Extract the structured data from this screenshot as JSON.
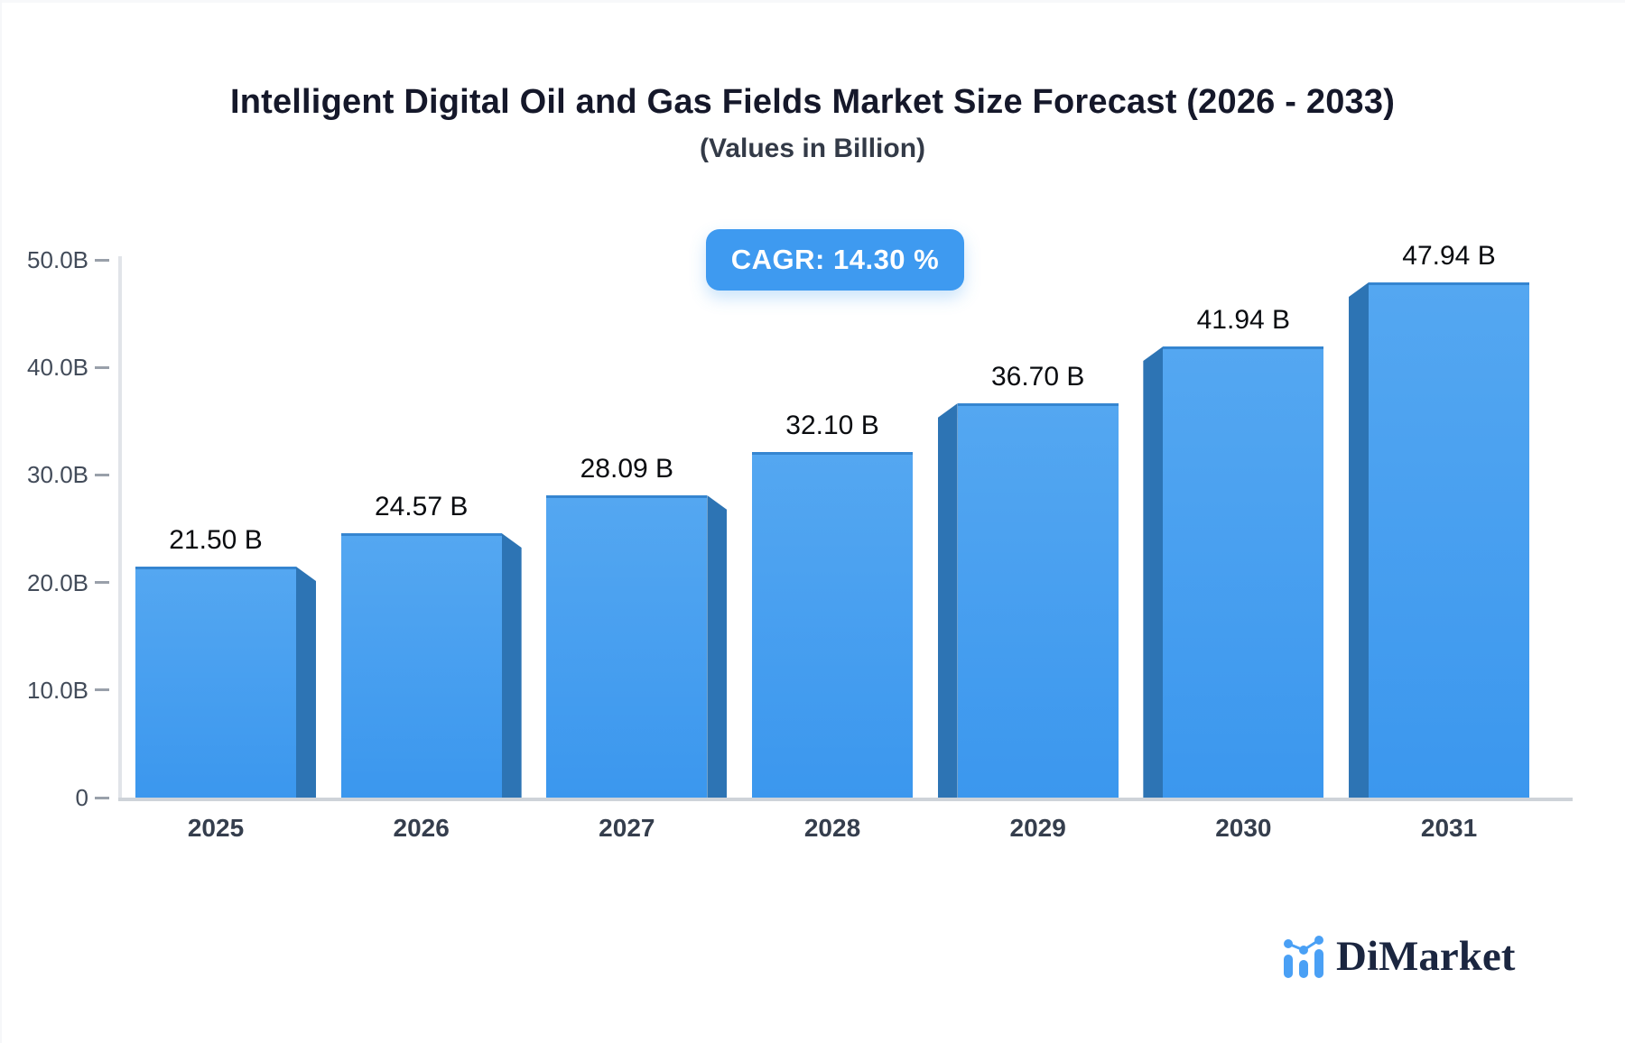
{
  "chart_data": {
    "type": "bar",
    "title": "Intelligent Digital Oil and Gas Fields Market Size Forecast (2026 - 2033)",
    "subtitle": "(Values in Billion)",
    "categories": [
      "2025",
      "2026",
      "2027",
      "2028",
      "2029",
      "2030",
      "2031"
    ],
    "values": [
      21.5,
      24.57,
      28.09,
      32.1,
      36.7,
      41.94,
      47.94
    ],
    "value_labels": [
      "21.50 B",
      "24.57 B",
      "28.09 B",
      "32.10 B",
      "36.70 B",
      "41.94 B",
      "47.94 B"
    ],
    "y_ticks": [
      {
        "label": "0",
        "value": 0
      },
      {
        "label": "10.0B",
        "value": 10
      },
      {
        "label": "20.0B",
        "value": 20
      },
      {
        "label": "30.0B",
        "value": 30
      },
      {
        "label": "40.0B",
        "value": 40
      },
      {
        "label": "50.0B",
        "value": 50
      }
    ],
    "ylim": [
      0,
      50
    ],
    "xlabel": "",
    "ylabel": "",
    "grid": false,
    "legend": false,
    "bar_color_top": "#54a7f1",
    "bar_color_bottom": "#3b97ee",
    "bar_side_color": "#2d74b4",
    "bar_top_edge_color": "#3585d0"
  },
  "badge": {
    "label": "CAGR: 14.30 %",
    "bg_color": "#3e9af0",
    "text_color": "#ffffff"
  },
  "footer": {
    "logo_text": "DiMarket",
    "logo_icon": "bar-chart-icon",
    "logo_text_color": "#1b2640",
    "logo_icon_color": "#4aa0f5"
  }
}
